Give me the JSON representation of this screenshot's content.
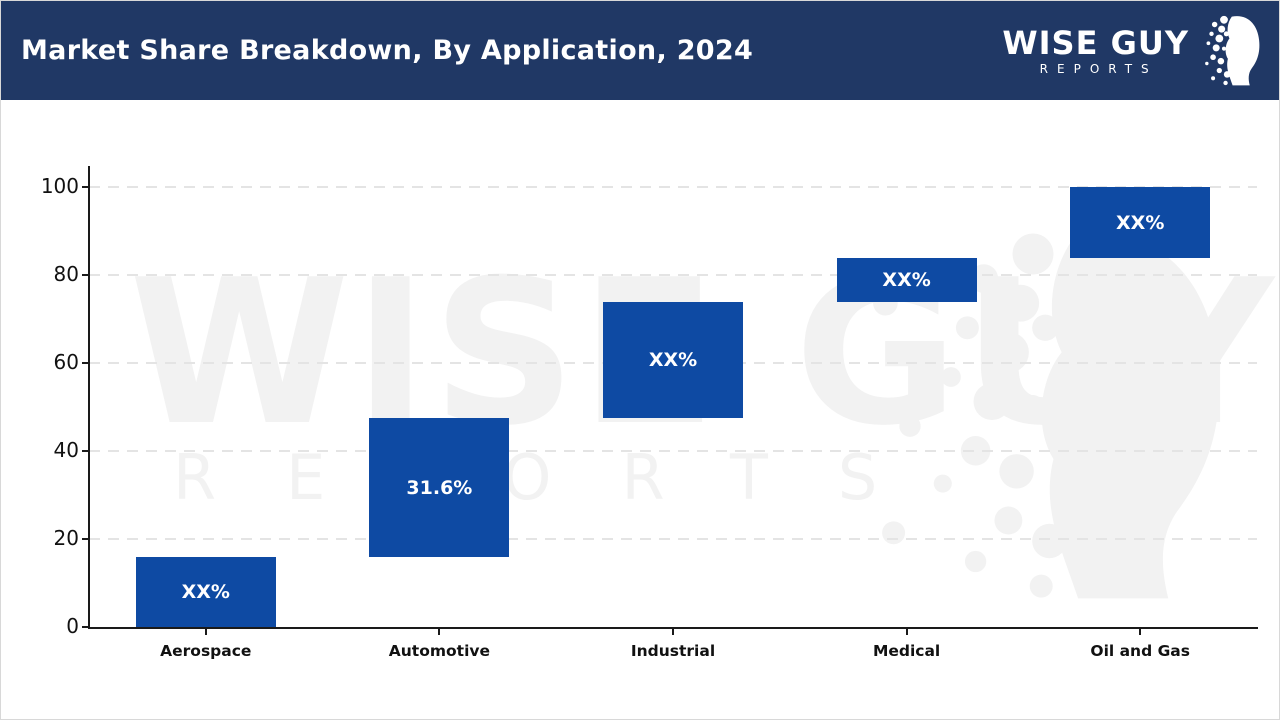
{
  "header": {
    "title": "Market Share Breakdown, By Application, 2024",
    "logo": {
      "name": "WISE GUY",
      "tagline": "REPORTS"
    }
  },
  "watermark": {
    "name": "WISE GUY",
    "tagline": "REPORTS"
  },
  "chart_data": {
    "type": "bar",
    "subtype": "waterfall",
    "title": "Market Share Breakdown, By Application, 2024",
    "categories": [
      "Aerospace",
      "Automotive",
      "Industrial",
      "Medical",
      "Oil and Gas"
    ],
    "segments": [
      {
        "category": "Aerospace",
        "start": 0,
        "end": 15.8,
        "label": "XX%"
      },
      {
        "category": "Automotive",
        "start": 15.8,
        "end": 47.4,
        "label": "31.6%"
      },
      {
        "category": "Industrial",
        "start": 47.4,
        "end": 73.8,
        "label": "XX%"
      },
      {
        "category": "Medical",
        "start": 73.8,
        "end": 83.8,
        "label": "XX%"
      },
      {
        "category": "Oil and Gas",
        "start": 83.8,
        "end": 100,
        "label": "XX%"
      }
    ],
    "y_ticks": [
      0,
      20,
      40,
      60,
      80,
      100
    ],
    "ylim": [
      0,
      104.8
    ],
    "xlabel": "",
    "ylabel": "",
    "grid": "horizontal-dashed",
    "legend": "none",
    "colors": {
      "bar": "#0e4aa3",
      "header_bg": "#203865",
      "grid_line": "#e4e4e4",
      "axis": "#1a1a1a",
      "watermark": "#f2f2f2",
      "bar_label_text": "#ffffff"
    }
  }
}
